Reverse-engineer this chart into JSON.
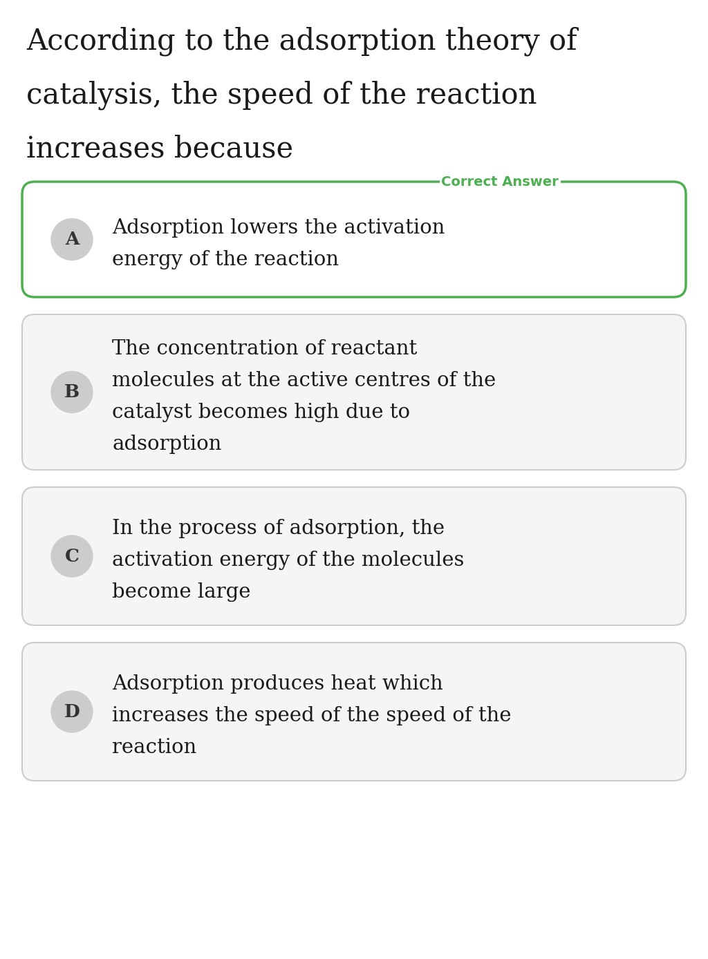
{
  "title_lines": [
    "According to the adsorption theory of",
    "catalysis, the speed of the reaction",
    "increases because"
  ],
  "title_fontsize": 30,
  "title_color": "#1a1a1a",
  "background_color": "#ffffff",
  "correct_answer_label": "Correct Answer",
  "correct_answer_color": "#4caf50",
  "options": [
    {
      "letter": "A",
      "text_lines": [
        "Adsorption lowers the activation",
        "energy of the reaction"
      ],
      "correct": true,
      "border_color": "#4caf50",
      "bg_color": "#ffffff",
      "letter_bg": "#cccccc"
    },
    {
      "letter": "B",
      "text_lines": [
        "The concentration of reactant",
        "molecules at the active centres of the",
        "catalyst becomes high due to",
        "adsorption"
      ],
      "correct": false,
      "border_color": "#cccccc",
      "bg_color": "#f5f5f5",
      "letter_bg": "#cccccc"
    },
    {
      "letter": "C",
      "text_lines": [
        "In the process of adsorption, the",
        "activation energy of the molecules",
        "become large"
      ],
      "correct": false,
      "border_color": "#cccccc",
      "bg_color": "#f5f5f5",
      "letter_bg": "#cccccc"
    },
    {
      "letter": "D",
      "text_lines": [
        "Adsorption produces heat which",
        "increases the speed of the speed of the",
        "reaction"
      ],
      "correct": false,
      "border_color": "#cccccc",
      "bg_color": "#f5f5f5",
      "letter_bg": "#cccccc"
    }
  ],
  "option_fontsize": 21,
  "letter_fontsize": 19,
  "correct_answer_fontsize": 14,
  "figsize": [
    10.24,
    13.88
  ],
  "dpi": 100
}
